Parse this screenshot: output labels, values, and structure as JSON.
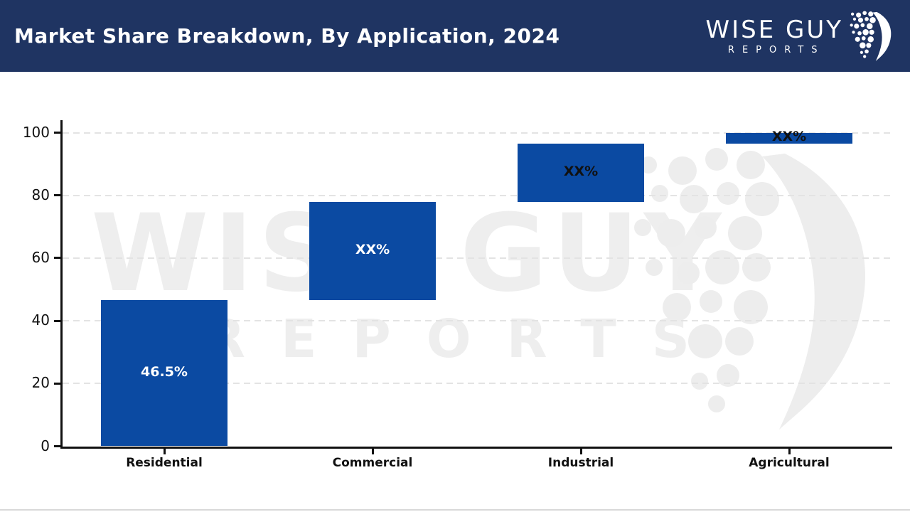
{
  "header": {
    "title": "Market Share Breakdown, By Application, 2024",
    "bg_color": "#1f3462",
    "logo": {
      "wordmark": "WISE GUY",
      "subtext": "REPORTS"
    }
  },
  "watermark": {
    "line1": "WISE GUY",
    "line2": "REPORTS"
  },
  "chart_data": {
    "type": "bar",
    "variant": "waterfall",
    "title": "Market Share Breakdown, By Application, 2024",
    "categories": [
      "Residential",
      "Commercial",
      "Industrial",
      "Agricultural"
    ],
    "segments": [
      {
        "category": "Residential",
        "start": 0,
        "end": 46.5,
        "value": 46.5,
        "label_shown": "46.5%",
        "label_color": "#ffffff"
      },
      {
        "category": "Commercial",
        "start": 46.5,
        "end": 78,
        "value": 31.5,
        "label_shown": "XX%",
        "label_color": "#ffffff"
      },
      {
        "category": "Industrial",
        "start": 78,
        "end": 96.5,
        "value": 18.5,
        "label_shown": "XX%",
        "label_color": "#111111"
      },
      {
        "category": "Agricultural",
        "start": 96.5,
        "end": 100,
        "value": 3.5,
        "label_shown": "XX%",
        "label_color": "#111111"
      }
    ],
    "yticks": [
      0,
      20,
      40,
      60,
      80,
      100
    ],
    "ylim": [
      0,
      104
    ],
    "bar_color": "#0b4aa2",
    "axis_color": "#111111",
    "gridlines": {
      "orientation": "horizontal",
      "style": "dashed",
      "color": "#e3e3e3"
    },
    "legend": "none"
  }
}
